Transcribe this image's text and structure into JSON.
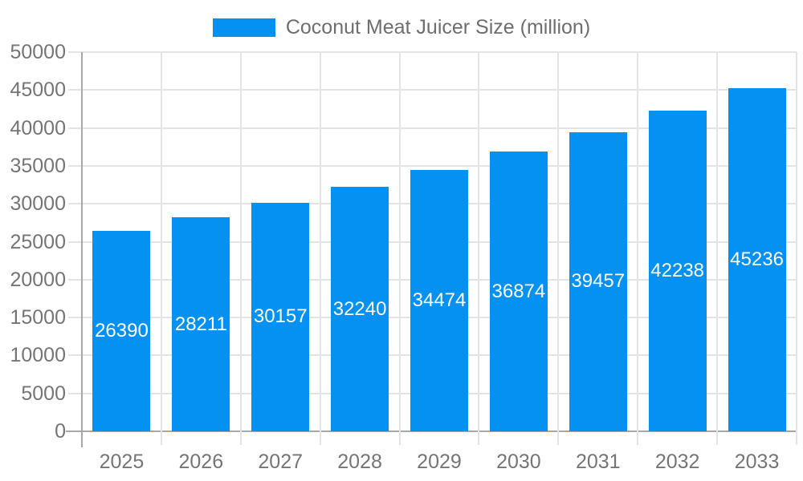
{
  "chart_data": {
    "type": "bar",
    "title": "Coconut Meat Juicer Size (million)",
    "categories": [
      "2025",
      "2026",
      "2027",
      "2028",
      "2029",
      "2030",
      "2031",
      "2032",
      "2033"
    ],
    "values": [
      26390,
      28211,
      30157,
      32240,
      34474,
      36874,
      39457,
      42238,
      45236
    ],
    "series": [
      {
        "name": "Coconut Meat Juicer Size (million)",
        "values": [
          26390,
          28211,
          30157,
          32240,
          34474,
          36874,
          39457,
          42238,
          45236
        ]
      }
    ],
    "xlabel": "",
    "ylabel": "",
    "ylim": [
      0,
      50000
    ],
    "ytick_step": 5000,
    "ytick_labels": [
      "0",
      "5000",
      "10000",
      "15000",
      "20000",
      "25000",
      "30000",
      "35000",
      "40000",
      "45000",
      "50000"
    ],
    "grid": "on",
    "legend_position": "top",
    "bar_value_labels_inside": true,
    "colors": {
      "bar": "#0591F2",
      "bar_value_label": "#ffffff",
      "gridline": "#e4e4e4",
      "axis_line": "#a8a8a8",
      "tick_label_text": "#757575",
      "legend_text": "#6e6e6e",
      "background": "#ffffff"
    }
  }
}
